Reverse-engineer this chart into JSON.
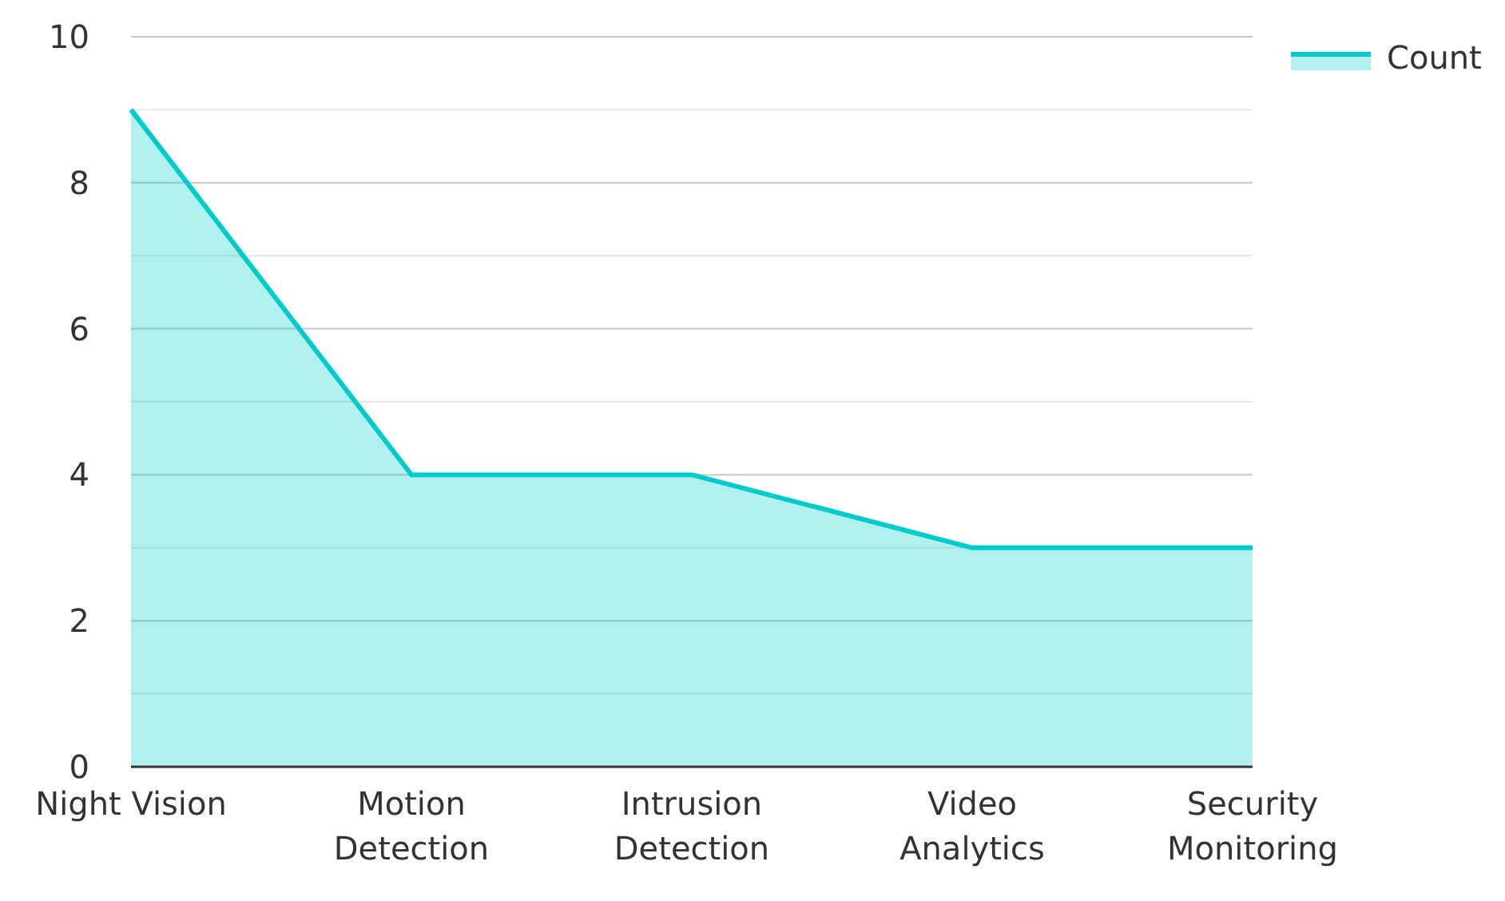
{
  "chart_data": {
    "type": "area",
    "categories": [
      "Night Vision",
      "Motion Detection",
      "Intrusion Detection",
      "Video Analytics",
      "Security Monitoring"
    ],
    "series": [
      {
        "name": "Count",
        "color": "#00cccc",
        "values": [
          9,
          4,
          4,
          3,
          3
        ]
      }
    ],
    "ylim": [
      0,
      10
    ],
    "yticks": [
      0,
      {
        "value": 1,
        "label": null
      },
      2,
      {
        "value": 3,
        "label": null
      },
      4,
      {
        "value": 5,
        "label": null
      },
      6,
      {
        "value": 7,
        "label": null
      },
      8,
      {
        "value": 9,
        "label": null
      },
      10
    ],
    "grid": "y",
    "legend": "top right"
  }
}
